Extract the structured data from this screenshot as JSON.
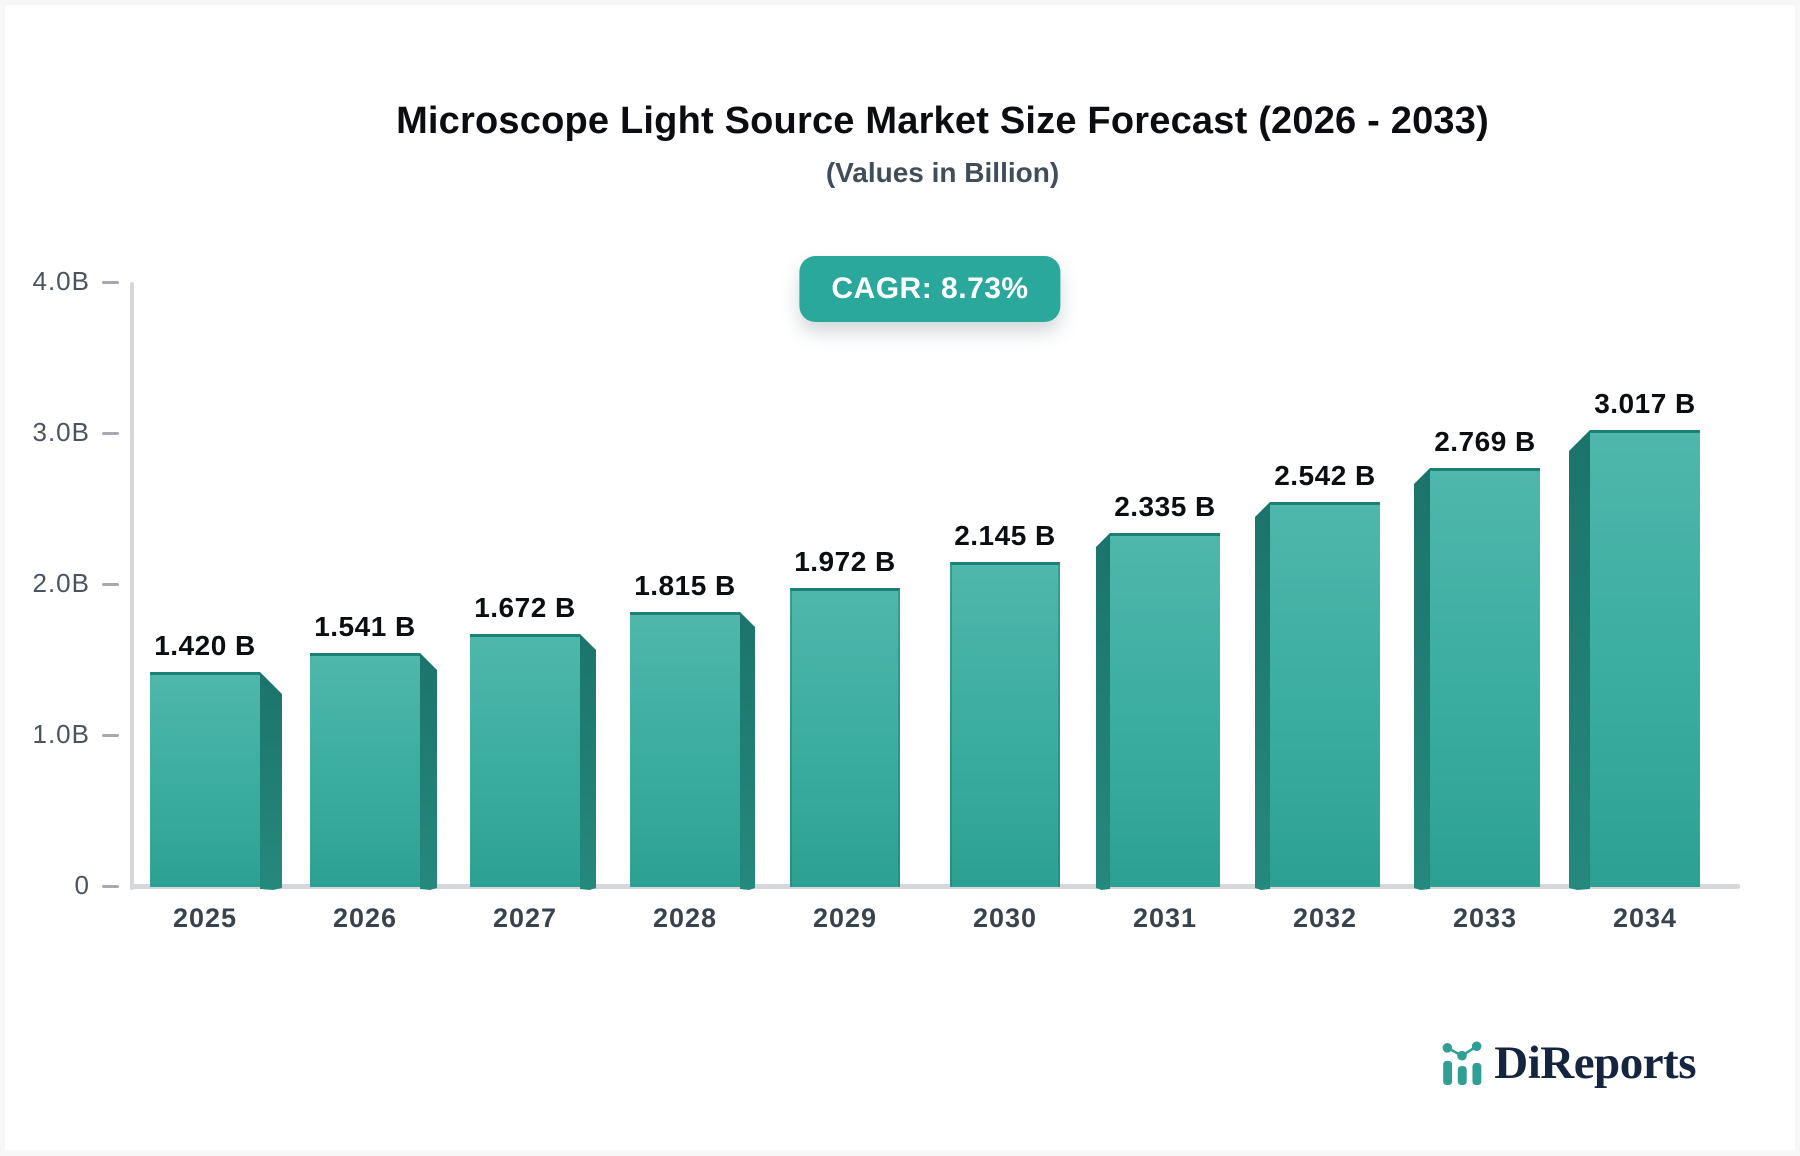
{
  "header": {
    "title": "Microscope Light Source Market Size Forecast (2026 - 2033)",
    "subtitle": "(Values in Billion)",
    "cagr_badge": "CAGR: 8.73%"
  },
  "chart_data": {
    "type": "bar",
    "title": "Microscope Light Source Market Size Forecast (2026 - 2033)",
    "subtitle": "(Values in Billion)",
    "cagr_percent": "8.73%",
    "categories": [
      "2025",
      "2026",
      "2027",
      "2028",
      "2029",
      "2030",
      "2031",
      "2032",
      "2033",
      "2034"
    ],
    "values": [
      1.42,
      1.541,
      1.672,
      1.815,
      1.972,
      2.145,
      2.335,
      2.542,
      2.769,
      3.017
    ],
    "value_labels": [
      "1.420 B",
      "1.541 B",
      "1.672 B",
      "1.815 B",
      "1.972 B",
      "2.145 B",
      "2.335 B",
      "2.542 B",
      "2.769 B",
      "3.017 B"
    ],
    "xlabel": "",
    "ylabel": "",
    "ylim": [
      0,
      4.0
    ],
    "grid": false,
    "legend": "none",
    "y_axis": {
      "ticks": [
        {
          "label": "4.0B",
          "value": 4.0
        },
        {
          "label": "3.0B",
          "value": 3.0
        },
        {
          "label": "2.0B",
          "value": 2.0
        },
        {
          "label": "1.0B",
          "value": 1.0
        },
        {
          "label": "0",
          "value": 0.0
        }
      ]
    },
    "bar_colors": {
      "face_top": "#4fb7ac",
      "face_bottom": "#2da094",
      "side_top": "#1b746b",
      "side_bottom": "#26897d"
    }
  },
  "branding": {
    "logo_text": "DiReports",
    "logo_icon": "mini-bar-chart-icon"
  },
  "colors": {
    "page_background": "#f7f7f8",
    "card_background": "#ffffff",
    "accent_teal": "#2aa89b",
    "axis_line": "#d5d7da",
    "tick": "#a6aab0",
    "y_label": "#4b5361",
    "x_label": "#39434f",
    "value_label": "#0c0f12",
    "title": "#0b0d10",
    "subtitle": "#414d5a",
    "logo_navy": "#15253f",
    "logo_teal": "#2f9e94"
  }
}
